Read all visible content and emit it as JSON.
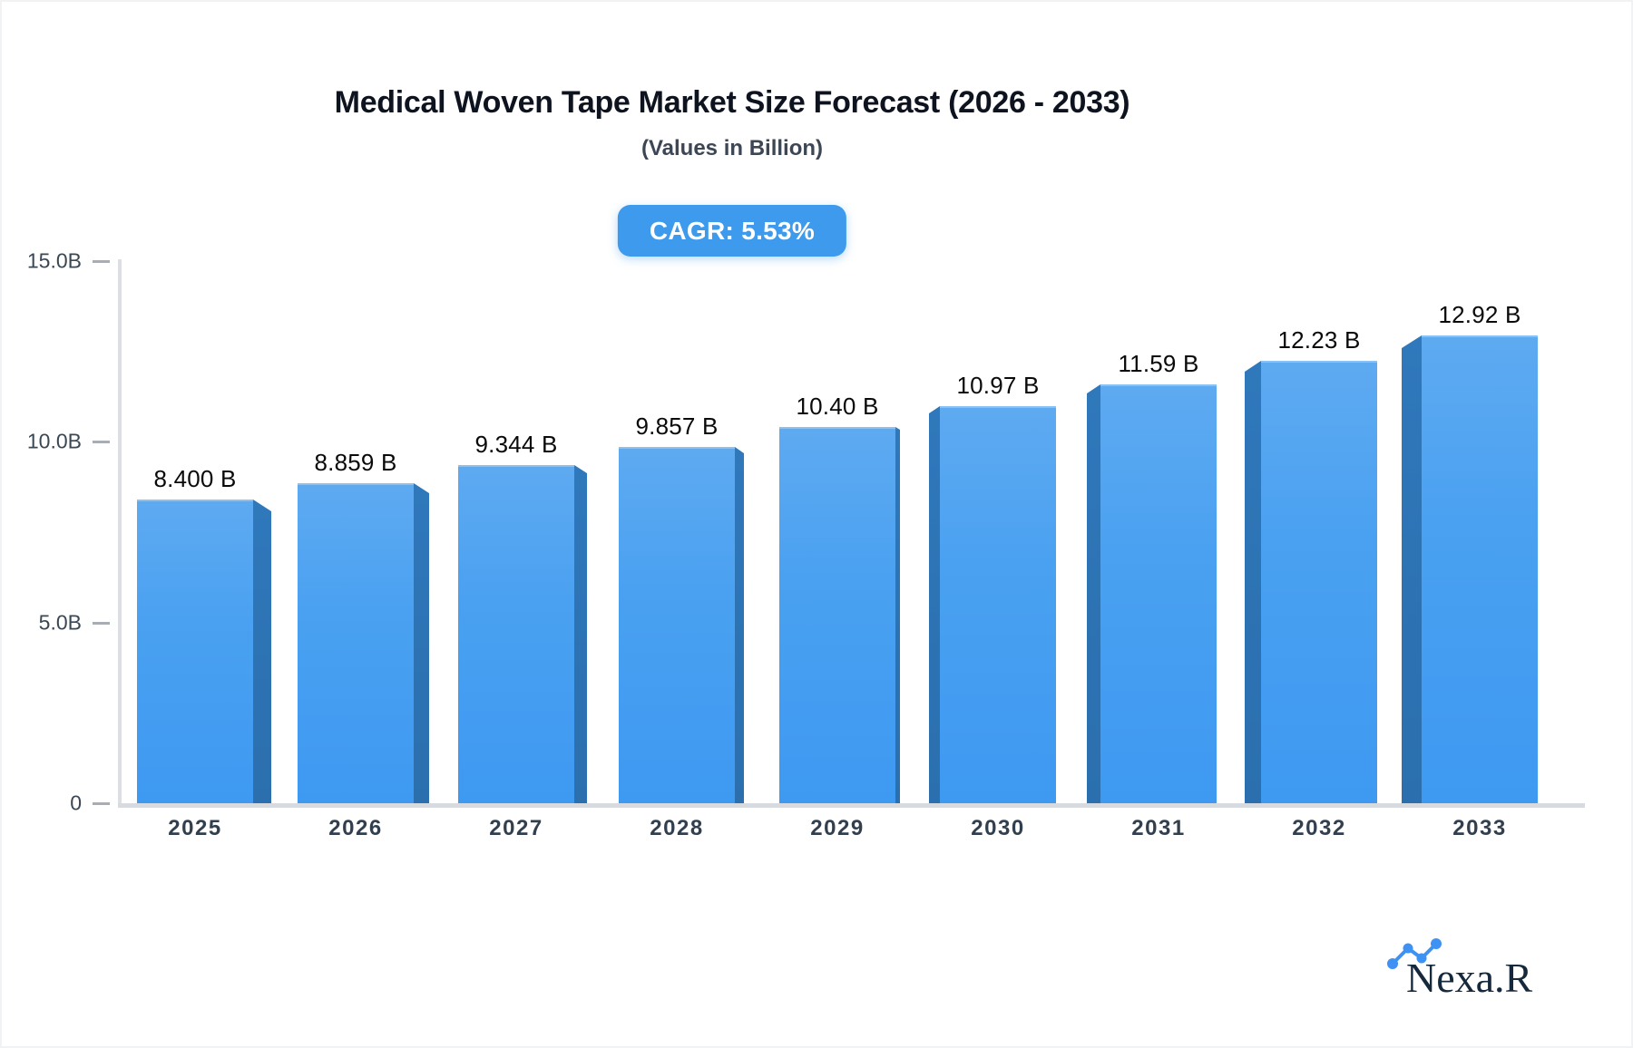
{
  "header": {
    "title": "Medical Woven Tape Market Size Forecast (2026 - 2033)",
    "subtitle": "(Values in Billion)",
    "cagr_label": "CAGR: 5.53%"
  },
  "chart_data": {
    "type": "bar",
    "title": "Medical Woven Tape Market Size Forecast (2026 - 2033)",
    "subtitle": "(Values in Billion)",
    "cagr": "5.53%",
    "categories": [
      "2025",
      "2026",
      "2027",
      "2028",
      "2029",
      "2030",
      "2031",
      "2032",
      "2033"
    ],
    "values": [
      8.4,
      8.859,
      9.344,
      9.857,
      10.4,
      10.97,
      11.59,
      12.23,
      12.92
    ],
    "value_labels": [
      "8.400 B",
      "8.859 B",
      "9.344 B",
      "9.857 B",
      "10.40 B",
      "10.97 B",
      "11.59 B",
      "12.23 B",
      "12.92 B"
    ],
    "unit": "Billion",
    "xlabel": "",
    "ylabel": "",
    "ylim": [
      0,
      15
    ],
    "yticks": [
      {
        "value": 0,
        "label": "0"
      },
      {
        "value": 5,
        "label": "5.0B"
      },
      {
        "value": 10,
        "label": "10.0B"
      },
      {
        "value": 15,
        "label": "15.0B"
      }
    ],
    "grid": false,
    "legend_position": "none",
    "style": "3d-bars",
    "colors": {
      "bar_gradient_top": "#5eaaf1",
      "bar_gradient_bottom": "#3e99f1",
      "bar_side_face": "#2e76b8",
      "axis_line": "#d7dade",
      "tick_text": "#3a4754",
      "value_text": "#0a0a0a",
      "badge_background": "#3d9aec",
      "badge_text": "#ffffff"
    }
  },
  "branding": {
    "logo_text": "Nexa.R",
    "logo_icon": "sparkline-dots-icon",
    "logo_color": "#16293c",
    "logo_accent": "#3e92f3"
  }
}
